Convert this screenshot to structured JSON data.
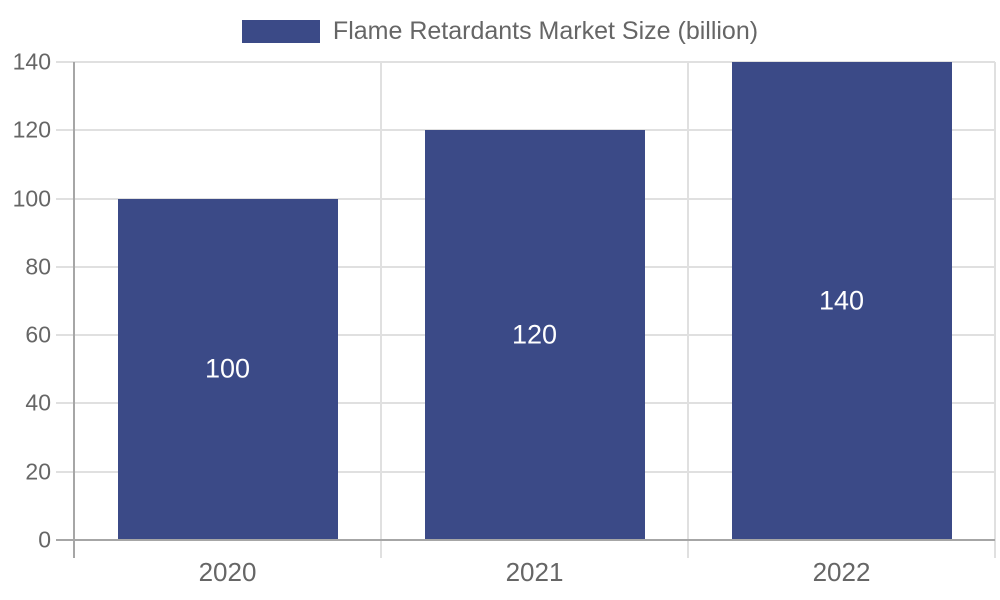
{
  "legend": {
    "label": "Flame Retardants Market Size (billion)"
  },
  "chart_data": {
    "type": "bar",
    "title": "Flame Retardants Market Size (billion)",
    "series_name": "Flame Retardants Market Size (billion)",
    "categories": [
      "2020",
      "2021",
      "2022"
    ],
    "values": [
      100,
      120,
      140
    ],
    "value_labels": [
      "100",
      "120",
      "140"
    ],
    "xlabel": "",
    "ylabel": "",
    "ylim": [
      0,
      140
    ],
    "yticks": [
      0,
      20,
      40,
      60,
      80,
      100,
      120,
      140
    ],
    "grid": true,
    "legend_position": "top-center",
    "colors": {
      "bar": "#3B4A87",
      "value_label": "#ffffff",
      "tick_label": "#666666",
      "legend_label": "#666666",
      "gridline": "#e0e0e0",
      "axis": "#a6a6a6",
      "background": "#ffffff"
    }
  }
}
